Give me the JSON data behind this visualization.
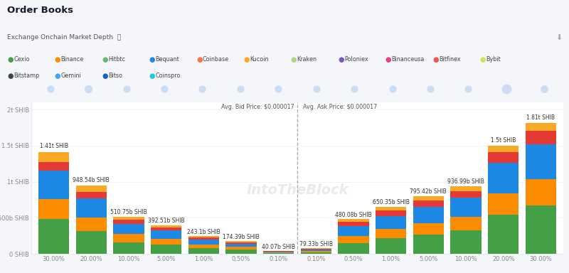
{
  "title": "Order Books",
  "subtitle": "Exchange Onchain Market Depth  ⓘ",
  "avg_bid_price": "Avg. Bid Price: $0.000017",
  "avg_ask_price": "Avg. Ask Price: $0.000017",
  "watermark": "IntoTheBlock",
  "bg_color": "#f5f6fa",
  "chart_bg": "#ffffff",
  "bid_labels": [
    "30.00%",
    "20.00%",
    "10.00%",
    "5.00%",
    "1.00%",
    "0.50%",
    "0.10%"
  ],
  "ask_labels": [
    "0.10%",
    "0.50%",
    "1.00%",
    "5.00%",
    "10.00%",
    "20.00%",
    "30.00%"
  ],
  "bid_totals": [
    1410,
    948.54,
    510.75,
    392.51,
    243.1,
    174.39,
    40.07
  ],
  "ask_totals": [
    79.33,
    480.08,
    650.35,
    795.42,
    936.99,
    1500,
    1810
  ],
  "bid_total_labels": [
    "1.41t SHIB",
    "948.54b SHIB",
    "510.75b SHIB",
    "392.51b SHIB",
    "243.1b SHIB",
    "174.39b SHIB",
    "40.07b SHIB"
  ],
  "ask_total_labels": [
    "79.33b SHIB",
    "480.08b SHIB",
    "650.35b SHIB",
    "795.42b SHIB",
    "936.99b SHIB",
    "1.5t SHIB",
    "1.81t SHIB"
  ],
  "ytick_labels": [
    "0 SHIB",
    "500b SHIB",
    "1t SHIB",
    "1.5t SHIB",
    "2t SHIB"
  ],
  "ytick_values": [
    0,
    500,
    1000,
    1500,
    2000
  ],
  "ymax": 2100,
  "stack_colors": [
    "#43a047",
    "#fb8c00",
    "#1e88e5",
    "#e53935",
    "#f9a825"
  ],
  "bid_fracs": [
    [
      0.34,
      0.2,
      0.28,
      0.08,
      0.1
    ],
    [
      0.33,
      0.2,
      0.28,
      0.1,
      0.09
    ],
    [
      0.32,
      0.22,
      0.28,
      0.1,
      0.08
    ],
    [
      0.32,
      0.22,
      0.28,
      0.1,
      0.08
    ],
    [
      0.32,
      0.23,
      0.28,
      0.1,
      0.07
    ],
    [
      0.32,
      0.23,
      0.27,
      0.1,
      0.08
    ],
    [
      0.3,
      0.22,
      0.28,
      0.12,
      0.08
    ]
  ],
  "ask_fracs": [
    [
      0.3,
      0.2,
      0.28,
      0.12,
      0.1
    ],
    [
      0.32,
      0.2,
      0.28,
      0.12,
      0.08
    ],
    [
      0.33,
      0.2,
      0.28,
      0.12,
      0.07
    ],
    [
      0.34,
      0.2,
      0.28,
      0.11,
      0.07
    ],
    [
      0.35,
      0.2,
      0.28,
      0.1,
      0.07
    ],
    [
      0.36,
      0.2,
      0.28,
      0.1,
      0.06
    ],
    [
      0.37,
      0.2,
      0.27,
      0.1,
      0.06
    ]
  ],
  "legend_row1": [
    [
      "Cexio",
      "#43a047"
    ],
    [
      "Binance",
      "#fb8c00"
    ],
    [
      "Hitbtc",
      "#66bb6a"
    ],
    [
      "Bequant",
      "#1e88e5"
    ],
    [
      "Coinbase",
      "#ff7043"
    ],
    [
      "Kucoin",
      "#ffa726"
    ],
    [
      "Kraken",
      "#aed581"
    ],
    [
      "Poloniex",
      "#7e57c2"
    ],
    [
      "Binanceusa",
      "#ec407a"
    ],
    [
      "Bitfinex",
      "#ef5350"
    ],
    [
      "Bybit",
      "#d4e157"
    ]
  ],
  "legend_row2": [
    [
      "Bitstamp",
      "#37474f"
    ],
    [
      "Gemini",
      "#42a5f5"
    ],
    [
      "Bitso",
      "#1565c0"
    ],
    [
      "Coinspro",
      "#26c6da"
    ]
  ],
  "bubble_color": "#c5d8f5",
  "bubble_sizes_rel": [
    1.0,
    1.2,
    1.0,
    1.0,
    1.0,
    1.0,
    1.0,
    1.0,
    1.0,
    1.0,
    1.0,
    1.0,
    1.5,
    1.1,
    1.0,
    1.0,
    1.0,
    1.0,
    1.0,
    1.0,
    1.0,
    1.0,
    1.0,
    1.0,
    1.0,
    1.0,
    1.0
  ],
  "dashed_color": "#aaaaaa"
}
